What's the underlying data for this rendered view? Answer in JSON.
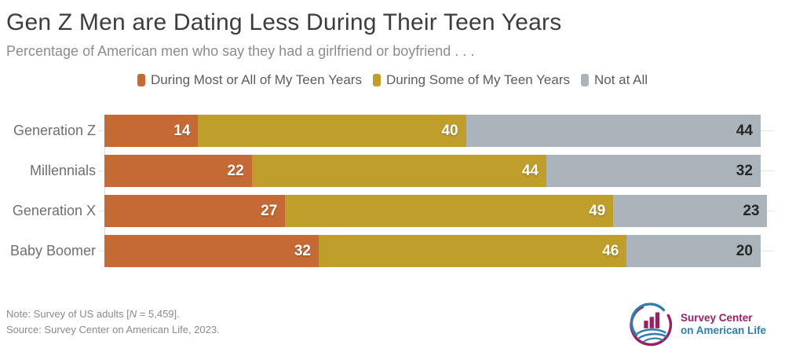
{
  "header": {
    "title": "Gen Z Men are Dating Less During Their Teen Years",
    "subtitle": "Percentage of American men who say they had a girlfriend or boyfriend . . ."
  },
  "legend": {
    "items": [
      {
        "label": "During Most or All of My Teen Years",
        "color": "#C66A35"
      },
      {
        "label": "During Some of My Teen Years",
        "color": "#BF9E2C"
      },
      {
        "label": "Not at All",
        "color": "#ABB4BA"
      }
    ]
  },
  "chart_data": {
    "type": "bar",
    "stacked": true,
    "orientation": "horizontal",
    "title": "Gen Z Men are Dating Less During Their Teen Years",
    "subtitle": "Percentage of American men who say they had a girlfriend or boyfriend . . .",
    "categories": [
      "Generation Z",
      "Millennials",
      "Generation X",
      "Baby Boomer"
    ],
    "series": [
      {
        "name": "During Most or All of My Teen Years",
        "color": "#C66A35",
        "label_color": "light",
        "values": [
          14,
          22,
          27,
          32
        ]
      },
      {
        "name": "During Some of My Teen Years",
        "color": "#BF9E2C",
        "label_color": "light",
        "values": [
          40,
          44,
          49,
          46
        ]
      },
      {
        "name": "Not at All",
        "color": "#ABB4BA",
        "label_color": "dark",
        "values": [
          44,
          32,
          23,
          20
        ]
      }
    ],
    "xlim": [
      0,
      100
    ],
    "value_labels": true,
    "legend_position": "top",
    "grid": "horizontal-category-ticks"
  },
  "footer": {
    "note_prefix": "Note: Survey of US adults [",
    "note_n": "N",
    "note_suffix": " = 5,459].",
    "source": "Source: Survey Center on American Life, 2023."
  },
  "logo": {
    "line1": "Survey Center",
    "line2": "on American Life",
    "accent_magenta": "#9B2063",
    "accent_blue": "#2E7CB0"
  }
}
